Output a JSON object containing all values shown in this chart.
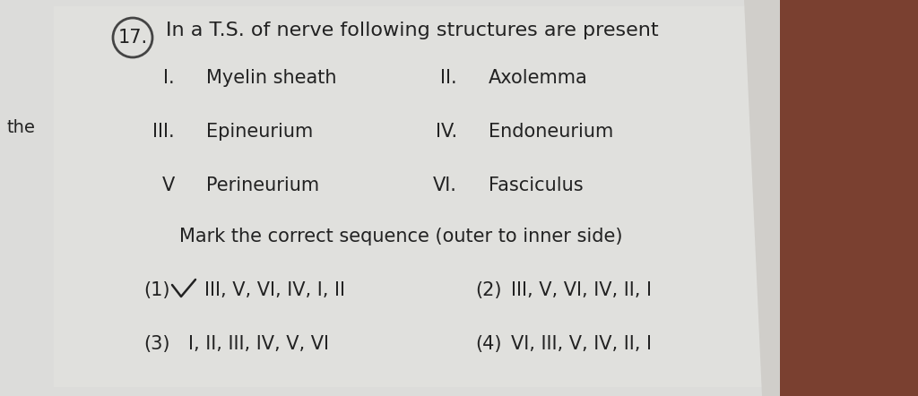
{
  "bg_color": "#c8c8c8",
  "page_color": "#e2e2e0",
  "question_number": "17.",
  "question_text": "In a T.S. of nerve following structures are present",
  "items_left": [
    {
      "roman": "I.",
      "text": "Myelin sheath"
    },
    {
      "roman": "III.",
      "text": "Epineurium"
    },
    {
      "roman": "V",
      "text": "Perineurium"
    }
  ],
  "items_right": [
    {
      "roman": "II.",
      "text": "Axolemma"
    },
    {
      "roman": "IV.",
      "text": "Endoneurium"
    },
    {
      "roman": "VI.",
      "text": "Fasciculus"
    }
  ],
  "side_text": "the",
  "instruction": "Mark the correct sequence (outer to inner side)",
  "options": [
    {
      "num": "(1)",
      "text": "III, V, VI, IV, I, II",
      "checked": true
    },
    {
      "num": "(2)",
      "text": "III, V, VI, IV, II, I",
      "checked": false
    },
    {
      "num": "(3)",
      "text": "I, II, III, IV, V, VI",
      "checked": false
    },
    {
      "num": "(4)",
      "text": "VI, III, V, IV, II, I",
      "checked": false
    }
  ],
  "text_color": "#222222",
  "brown_color": "#7a4030",
  "font_size_question": 16,
  "font_size_items": 15,
  "font_size_instruction": 15,
  "font_size_options": 15,
  "font_size_side": 14
}
